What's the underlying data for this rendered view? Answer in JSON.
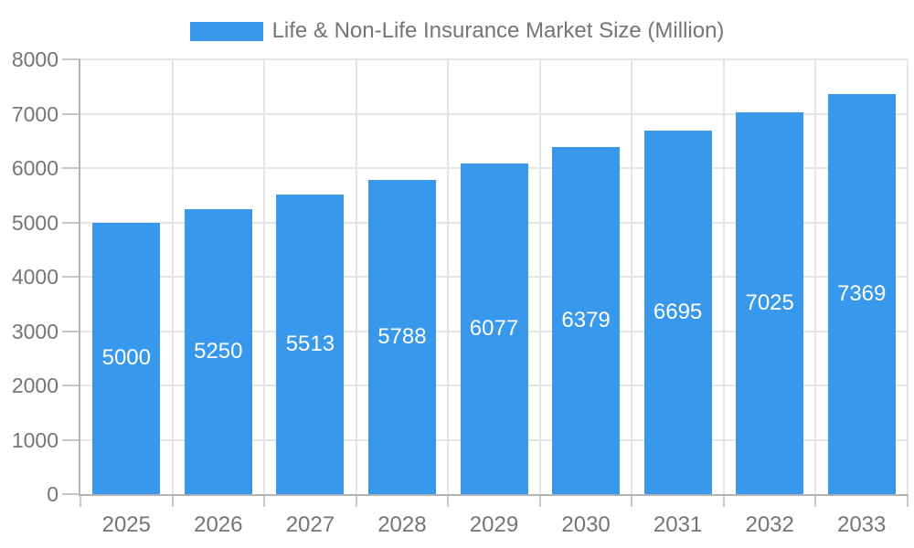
{
  "legend": {
    "label": "Life & Non-Life Insurance Market Size (Million)",
    "swatch_color": "#3898ec"
  },
  "chart_data": {
    "type": "bar",
    "title": "Life & Non-Life Insurance Market Size (Million)",
    "series": [
      {
        "name": "Life & Non-Life Insurance Market Size (Million)",
        "values": [
          5000,
          5250,
          5513,
          5788,
          6077,
          6379,
          6695,
          7025,
          7369
        ]
      }
    ],
    "categories": [
      "2025",
      "2026",
      "2027",
      "2028",
      "2029",
      "2030",
      "2031",
      "2032",
      "2033"
    ],
    "xlabel": "",
    "ylabel": "",
    "ylim": [
      0,
      8000
    ],
    "y_ticks": [
      0,
      1000,
      2000,
      3000,
      4000,
      5000,
      6000,
      7000,
      8000
    ],
    "grid": true,
    "legend_position": "top",
    "bar_labels_visible": true,
    "colors": {
      "bar": "#3898ec",
      "bar_label": "#ffffff",
      "axis_text": "#757575",
      "gridline": "#e6e6e6",
      "axis_line": "#b3b3b3",
      "tick": "#c9c9c9",
      "background": "#ffffff"
    }
  }
}
